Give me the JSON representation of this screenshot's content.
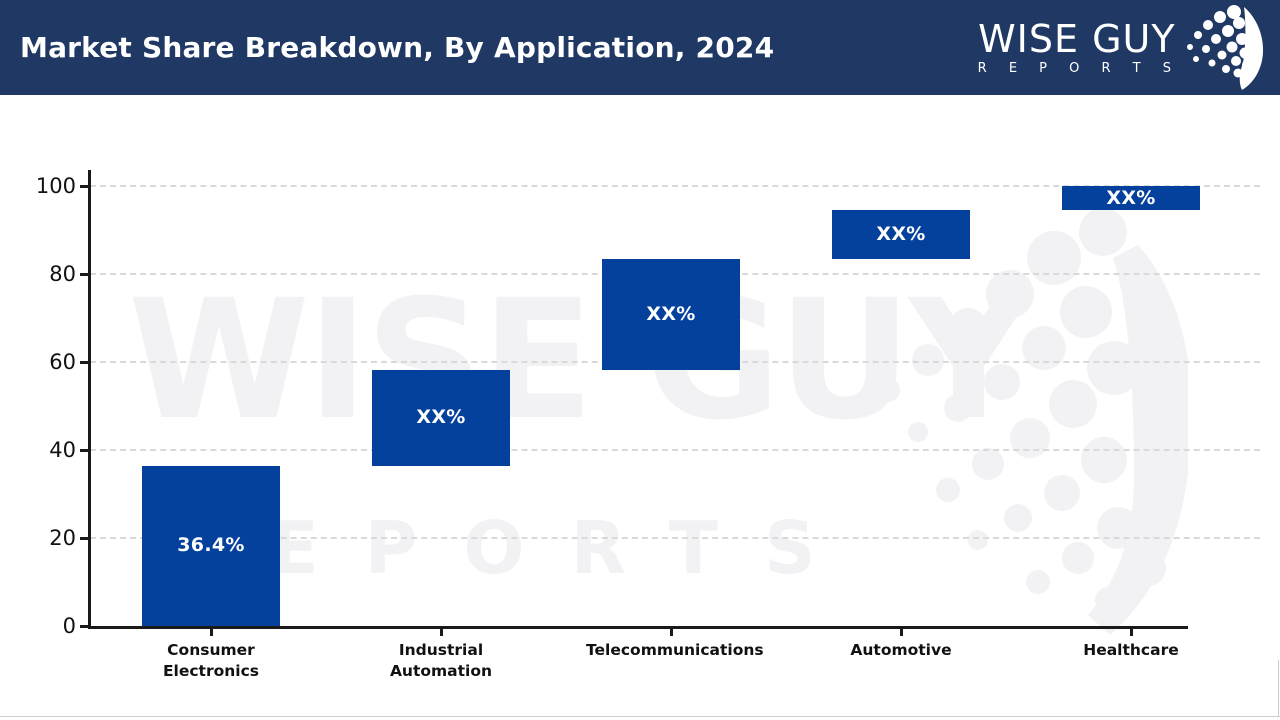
{
  "header": {
    "title": "Market Share Breakdown, By Application, 2024",
    "logo": {
      "name": "WISE GUY",
      "tagline": "R E P O R T S"
    }
  },
  "watermark": {
    "text": "WISE GUY",
    "tagline": "REPORTS"
  },
  "chart_data": {
    "type": "bar",
    "subtype": "waterfall-floating-bars",
    "title": "Market Share Breakdown, By Application, 2024",
    "categories": [
      "Consumer Electronics",
      "Industrial Automation",
      "Telecommunications",
      "Automotive",
      "Healthcare"
    ],
    "segments": [
      {
        "category": "Consumer Electronics",
        "start": 0,
        "end": 36.4,
        "label": "36.4%"
      },
      {
        "category": "Industrial Automation",
        "start": 36.4,
        "end": 58.2,
        "label": "XX%"
      },
      {
        "category": "Telecommunications",
        "start": 58.2,
        "end": 83.4,
        "label": "XX%"
      },
      {
        "category": "Automotive",
        "start": 83.4,
        "end": 94.5,
        "label": "XX%"
      },
      {
        "category": "Healthcare",
        "start": 94.5,
        "end": 100,
        "label": "XX%"
      }
    ],
    "xlabel": "",
    "ylabel": "",
    "ylim": [
      0,
      100
    ],
    "yticks": [
      0,
      20,
      40,
      60,
      80,
      100
    ],
    "grid": "horizontal-dashed",
    "legend": "none",
    "bar_color": "#04419c",
    "bar_label_color": "#ffffff"
  },
  "colors": {
    "header_bg": "#1f3864",
    "bar": "#04419c",
    "grid": "#d9d9d9",
    "axis": "#1a1a1a",
    "watermark": "#f2f2f5",
    "text": "#111111",
    "page_bg": "#ffffff"
  }
}
